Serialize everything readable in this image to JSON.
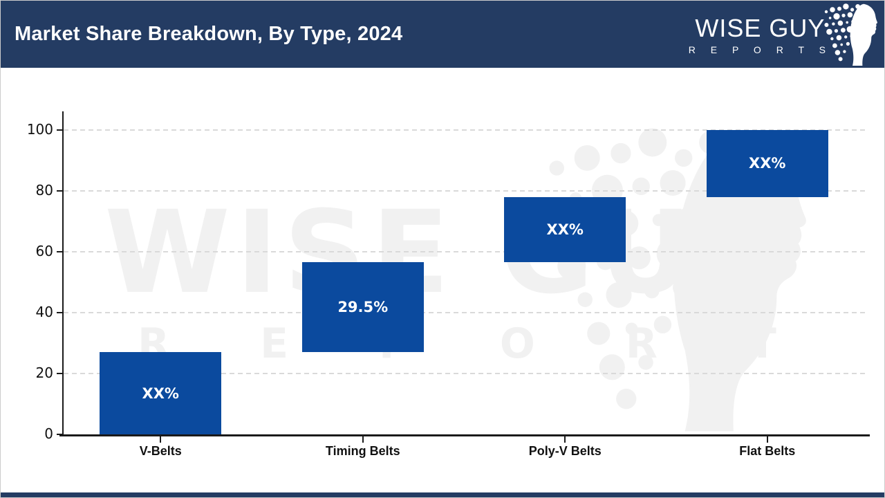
{
  "header": {
    "title": "Market Share Breakdown, By Type, 2024",
    "bg_color": "#243c63",
    "logo": {
      "line1": "WISE GUY",
      "line2": "R E P O R T S"
    }
  },
  "watermark": {
    "line1": "WISE GUY",
    "line2": "R E P O R T S"
  },
  "chart_data": {
    "type": "bar",
    "subtype": "floating-waterfall",
    "title": "Market Share Breakdown, By Type, 2024",
    "categories": [
      "V-Belts",
      "Timing Belts",
      "Poly-V Belts",
      "Flat Belts"
    ],
    "segments": [
      {
        "category": "V-Belts",
        "start": 0,
        "end": 27,
        "label": "XX%"
      },
      {
        "category": "Timing Belts",
        "start": 27,
        "end": 56.5,
        "label": "29.5%"
      },
      {
        "category": "Poly-V Belts",
        "start": 56.5,
        "end": 78,
        "label": "XX%"
      },
      {
        "category": "Flat Belts",
        "start": 78,
        "end": 100,
        "label": "XX%"
      }
    ],
    "yticks": [
      0,
      20,
      40,
      60,
      80,
      100
    ],
    "ylim": [
      0,
      105
    ],
    "xlabel": "",
    "ylabel": "",
    "grid": "horizontal-dashed",
    "legend": "none",
    "bar_color": "#0b4a9e",
    "bar_label_color": "#ffffff",
    "gridline_color": "#d9d9d9"
  },
  "footer": {
    "bg_color": "#243c63"
  }
}
